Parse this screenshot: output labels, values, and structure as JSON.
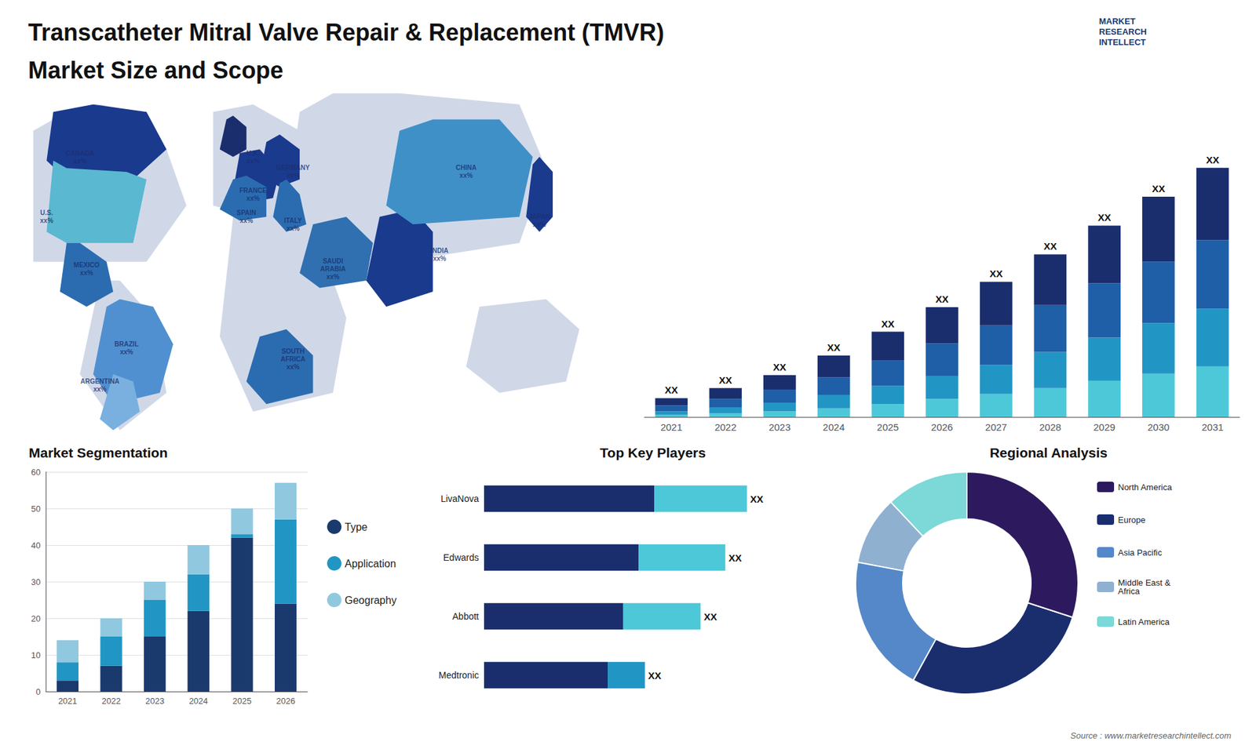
{
  "chart_data": [
    {
      "type": "bar",
      "title": "Transcatheter Mitral Valve Repair & Replacement (TMVR)",
      "subtitle": "Market Size and Scope",
      "annotations": [
        "MARKET\nRESEARCH\nINTELLECT",
        "Source : www.marketresearchintellect.com"
      ],
      "categories": [
        "2021",
        "2022",
        "2023",
        "2024",
        "2025",
        "2026",
        "2027",
        "2028",
        "2029",
        "2030",
        "2031"
      ],
      "stacked": true,
      "series": [
        {
          "color": "#4dc8d8",
          "values": [
            0.3,
            0.5,
            0.8,
            1.2,
            1.8,
            2.5,
            3.2,
            4,
            5,
            6,
            7
          ]
        },
        {
          "color": "#2196c4",
          "values": [
            0.5,
            0.8,
            1.2,
            1.8,
            2.5,
            3.2,
            4,
            5,
            6,
            7,
            8
          ]
        },
        {
          "color": "#1e5fa8",
          "values": [
            0.8,
            1.2,
            1.8,
            2.5,
            3.5,
            4.5,
            5.5,
            6.5,
            7.5,
            8.5,
            9.5
          ]
        },
        {
          "color": "#1a2e6e",
          "values": [
            1,
            1.5,
            2,
            3,
            4,
            5,
            6,
            7,
            8,
            9,
            10
          ],
          "value_labels": [
            "XX",
            "XX",
            "XX",
            "XX",
            "XX",
            "XX",
            "XX",
            "XX",
            "XX",
            "XX",
            "XX"
          ]
        }
      ],
      "data_labels": true,
      "ylim": [
        0,
        44.16
      ],
      "tick_labels": "x",
      "grid": false
    },
    {
      "type": "map",
      "labels": [
        "CANADA\nxx%",
        "U.S.\nxx%",
        "MEXICO\nxx%",
        "BRAZIL\nxx%",
        "ARGENTINA\nxx%",
        "U.K.\nxx%",
        "FRANCE\nxx%",
        "GERMANY\nxx%",
        "SPAIN\nxx%",
        "ITALY\nxx%",
        "SAUDI\nARABIA\nxx%",
        "SOUTH\nAFRICA\nxx%",
        "CHINA\nxx%",
        "INDIA\nxx%",
        "JAPAN\nxx%"
      ],
      "color": "#d0d8e8",
      "colors": [
        "#1a3a8e",
        "#5ab8d0",
        "#2b6cb0",
        "#5090d0",
        "#7ab0e0",
        "#1a3a8e",
        "#1a3a8e",
        "#2b6cb0",
        "#2b6cb0",
        "#1a2e6e",
        "#3070b0",
        "#2b6cb0",
        "#1a3a8e",
        "#4090c8",
        "#1a3a8e"
      ]
    },
    {
      "type": "bar",
      "title": "Market Segmentation",
      "categories": [
        "2021",
        "2022",
        "2023",
        "2024",
        "2025",
        "2026"
      ],
      "stacked": true,
      "series": [
        {
          "name": "Type",
          "color": "#1a3a6e",
          "values": [
            3,
            7,
            15,
            22,
            42,
            24
          ]
        },
        {
          "name": "Application",
          "color": "#2196c4",
          "values": [
            5,
            8,
            10,
            10,
            1,
            23
          ]
        },
        {
          "name": "Geography",
          "color": "#90c8e0",
          "values": [
            6,
            5,
            5,
            8,
            7,
            10
          ]
        }
      ],
      "ylim": [
        0,
        60
      ],
      "yticks": [
        0,
        10,
        20,
        30,
        40,
        50,
        60
      ],
      "grid": true,
      "legend": "right"
    },
    {
      "type": "bar",
      "orientation": "horizontal",
      "title": "Top Key Players",
      "categories": [
        "LivaNova",
        "Edwards",
        "Abbott",
        "Medtronic"
      ],
      "stacked": true,
      "series": [
        {
          "values": [
            0.55,
            0.5,
            0.45,
            0.4
          ],
          "colors": [
            "#1a2e6e",
            "#1a2e6e",
            "#1a2e6e",
            "#1a2e6e"
          ]
        },
        {
          "values": [
            0.3,
            0.28,
            0.25,
            0.12
          ],
          "colors": [
            "#4dc8d8",
            "#4dc8d8",
            "#4dc8d8",
            "#2196c4"
          ],
          "value_labels": [
            "XX",
            "XX",
            "XX",
            "XX"
          ]
        }
      ],
      "data_labels": true,
      "xlim": [
        0,
        1.1
      ],
      "tick_labels": "y"
    },
    {
      "type": "pie",
      "title": "Regional Analysis",
      "categories": [
        "Latin America",
        "Middle East &\nAfrica",
        "Asia Pacific",
        "Europe",
        "North America"
      ],
      "values": [
        0.12,
        0.1,
        0.2,
        0.28,
        0.3
      ],
      "colors": [
        "#7dd8d8",
        "#90b0d0",
        "#5588c8",
        "#1a2e6e",
        "#2d1a5e"
      ],
      "legend": "right"
    }
  ]
}
